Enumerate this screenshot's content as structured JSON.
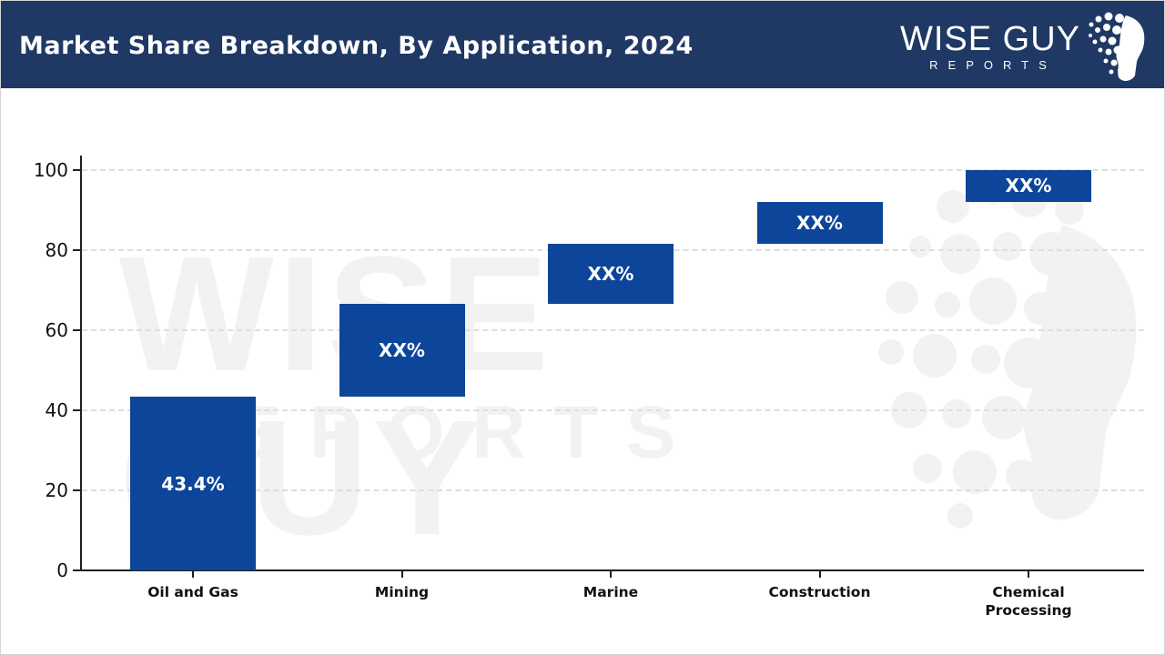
{
  "header": {
    "title": "Market Share Breakdown, By Application, 2024",
    "logo": {
      "line1": "WISE GUY",
      "line2": "REPORTS"
    }
  },
  "watermark": {
    "line1": "WISE GUY",
    "line2": "REPORTS"
  },
  "colors": {
    "header_bg": "#1f3864",
    "bar": "#0c4599",
    "grid": "#dedede",
    "axis": "#1f1f1f",
    "bar_label_text": "#ffffff"
  },
  "chart_data": {
    "type": "bar",
    "subtype": "waterfall",
    "title": "Market Share Breakdown, By Application, 2024",
    "xlabel": "",
    "ylabel": "",
    "categories": [
      "Oil and Gas",
      "Mining",
      "Marine",
      "Construction",
      "Chemical Processing"
    ],
    "segments": [
      {
        "category": "Oil and Gas",
        "start": 0,
        "end": 43.4,
        "delta_pct": 43.4,
        "label": "43.4%"
      },
      {
        "category": "Mining",
        "start": 43.4,
        "end": 66.5,
        "delta_pct": 23.1,
        "label": "XX%"
      },
      {
        "category": "Marine",
        "start": 66.5,
        "end": 81.6,
        "delta_pct": 15.1,
        "label": "XX%"
      },
      {
        "category": "Construction",
        "start": 81.6,
        "end": 92.1,
        "delta_pct": 10.5,
        "label": "XX%"
      },
      {
        "category": "Chemical Processing",
        "start": 92.1,
        "end": 100,
        "delta_pct": 7.9,
        "label": "XX%"
      }
    ],
    "yticks": [
      0,
      20,
      40,
      60,
      80,
      100
    ],
    "ylim": [
      0,
      103.6
    ],
    "grid": "horizontal-dashed",
    "legend": "none",
    "bar_color": "#0c4599",
    "value_labels_inside_bars": true
  }
}
